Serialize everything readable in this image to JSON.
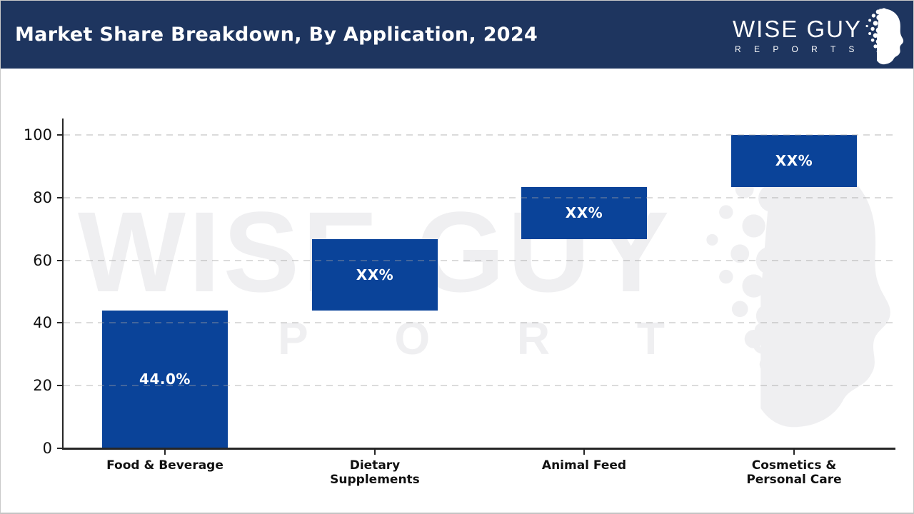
{
  "header": {
    "title": "Market Share Breakdown, By Application, 2024",
    "logo": {
      "line1": "WISE GUY",
      "line2": "R E P O R T S"
    }
  },
  "watermark": {
    "line1": "WISE GUY",
    "line2": "P O R T S"
  },
  "chart_data": {
    "type": "bar",
    "subtype": "waterfall",
    "title": "Market Share Breakdown, By Application, 2024",
    "categories": [
      "Food & Beverage",
      "Dietary Supplements",
      "Animal Feed",
      "Cosmetics & Personal Care"
    ],
    "category_tick_lines": [
      [
        "Food & Beverage"
      ],
      [
        "Dietary",
        "Supplements"
      ],
      [
        "Animal Feed"
      ],
      [
        "Cosmetics &",
        "Personal Care"
      ]
    ],
    "series": [
      {
        "name": "Market share (%)",
        "segments": [
          {
            "category": "Food & Beverage",
            "start": 0,
            "end": 44.0,
            "value": 44.0,
            "label": "44.0%"
          },
          {
            "category": "Dietary Supplements",
            "start": 44.0,
            "end": 66.8,
            "value": 22.8,
            "label": "XX%"
          },
          {
            "category": "Animal Feed",
            "start": 66.8,
            "end": 83.4,
            "value": 16.6,
            "label": "XX%"
          },
          {
            "category": "Cosmetics & Personal Care",
            "start": 83.4,
            "end": 100.0,
            "value": 16.6,
            "label": "XX%"
          }
        ]
      }
    ],
    "xlabel": "",
    "ylabel": "",
    "ylim": [
      0,
      100
    ],
    "yticks": [
      0,
      20,
      40,
      60,
      80,
      100
    ],
    "grid": "horizontal-dashed",
    "legend": "none",
    "bar_color": "#0a4399",
    "bar_label_color": "#ffffff"
  },
  "colors": {
    "header_bg": "#1e355f",
    "header_text": "#ffffff",
    "bar": "#0a4399",
    "axis": "#262626",
    "tick_label": "#111111",
    "watermark": "#efeff1",
    "page_border": "#c9c9c9"
  }
}
